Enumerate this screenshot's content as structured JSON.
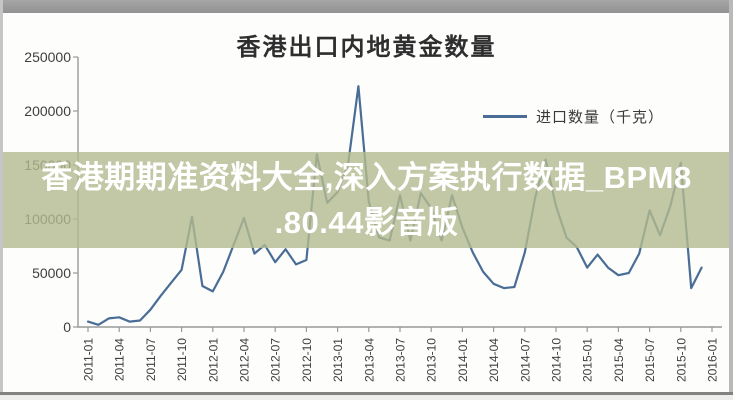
{
  "page": {
    "overlay": {
      "line1": "香港期期准资料大全,深入方案执行数据_BPM8",
      "line2": ".80.44影音版",
      "band_color": "rgba(179,186,142,0.8)",
      "text_color": "#ffffff"
    }
  },
  "chart_data": {
    "type": "line",
    "title": "香港出口内地黄金数量",
    "legend_label": "进口数量（千克）",
    "legend_position": "right",
    "line_color": "#4a6d96",
    "axis_color": "#999999",
    "label_color": "#3e3e3e",
    "grid": false,
    "ylim": [
      0,
      250000
    ],
    "yticks": [
      0,
      50000,
      100000,
      150000,
      200000,
      250000
    ],
    "ytick_labels": [
      "0",
      "50000",
      "100000",
      "150000",
      "200000",
      "250000"
    ],
    "xtick_labels": [
      "2011-01",
      "2011-04",
      "2011-07",
      "2011-10",
      "2012-01",
      "2012-04",
      "2012-07",
      "2012-10",
      "2013-01",
      "2013-04",
      "2013-07",
      "2013-10",
      "2014-01",
      "2014-04",
      "2014-07",
      "2014-10",
      "2015-01",
      "2015-04",
      "2015-07",
      "2015-10",
      "2016-01"
    ],
    "x": [
      "2011-01",
      "2011-02",
      "2011-03",
      "2011-04",
      "2011-05",
      "2011-06",
      "2011-07",
      "2011-08",
      "2011-09",
      "2011-10",
      "2011-11",
      "2011-12",
      "2012-01",
      "2012-02",
      "2012-03",
      "2012-04",
      "2012-05",
      "2012-06",
      "2012-07",
      "2012-08",
      "2012-09",
      "2012-10",
      "2012-11",
      "2012-12",
      "2013-01",
      "2013-02",
      "2013-03",
      "2013-04",
      "2013-05",
      "2013-06",
      "2013-07",
      "2013-08",
      "2013-09",
      "2013-10",
      "2013-11",
      "2013-12",
      "2014-01",
      "2014-02",
      "2014-03",
      "2014-04",
      "2014-05",
      "2014-06",
      "2014-07",
      "2014-08",
      "2014-09",
      "2014-10",
      "2014-11",
      "2014-12",
      "2015-01",
      "2015-02",
      "2015-03",
      "2015-04",
      "2015-05",
      "2015-06",
      "2015-07",
      "2015-08",
      "2015-09",
      "2015-10",
      "2015-11",
      "2015-12"
    ],
    "series": [
      {
        "name": "进口数量（千克）",
        "values": [
          5000,
          2000,
          8000,
          9000,
          5000,
          6000,
          16000,
          29000,
          41000,
          53000,
          102000,
          38000,
          33000,
          51000,
          76000,
          101000,
          68000,
          76000,
          60000,
          72000,
          58000,
          62000,
          160000,
          115000,
          125000,
          150000,
          223000,
          116000,
          83000,
          80000,
          122000,
          80000,
          124000,
          110000,
          80000,
          122000,
          92000,
          69000,
          51000,
          40000,
          36000,
          37000,
          69000,
          120000,
          155000,
          112000,
          83000,
          74000,
          55000,
          67000,
          55000,
          48000,
          50000,
          68000,
          108000,
          85000,
          112000,
          152000,
          36000,
          55000
        ]
      }
    ]
  }
}
